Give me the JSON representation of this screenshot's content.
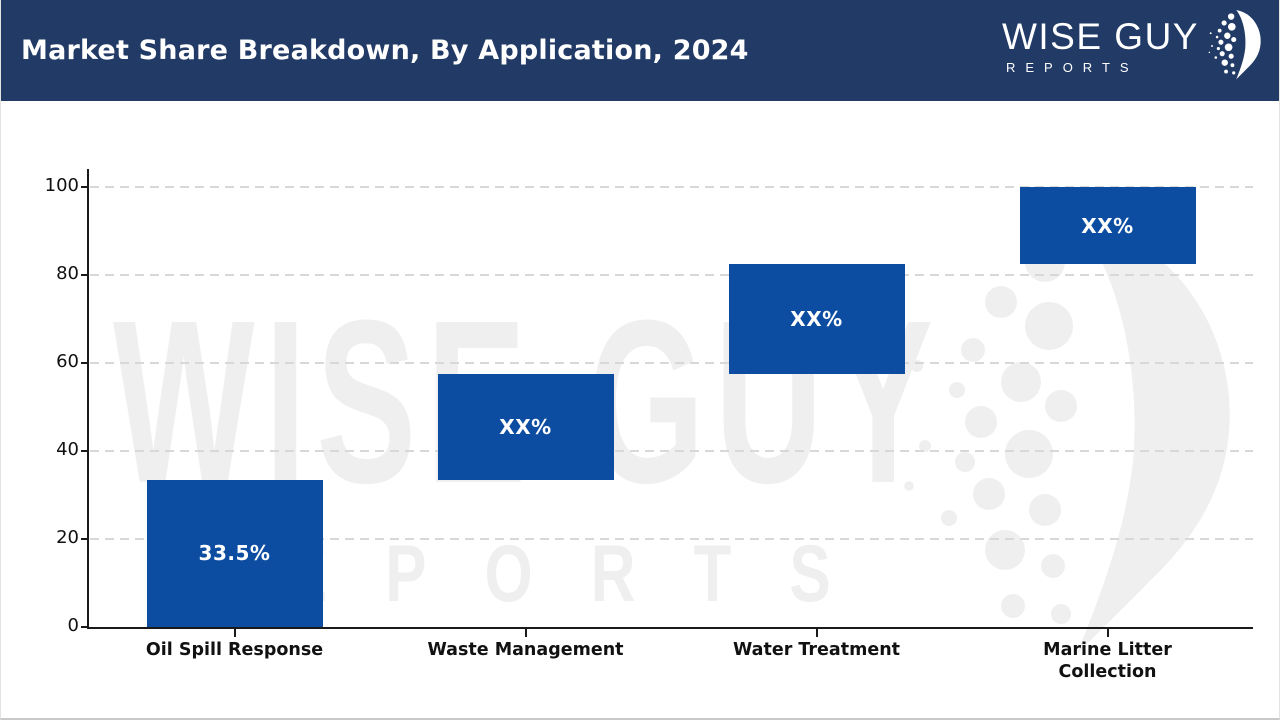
{
  "header": {
    "title": "Market Share Breakdown, By Application, 2024",
    "background_color": "#213a66",
    "logo": {
      "line1": "WISE GUY",
      "line2": "REPORTS"
    }
  },
  "watermark": {
    "line1": "WISE GUY",
    "line2": "REPORTS"
  },
  "chart_data": {
    "type": "bar",
    "variant": "floating-waterfall",
    "title": "Market Share Breakdown, By Application, 2024",
    "categories": [
      "Oil Spill Response",
      "Waste Management",
      "Water Treatment",
      "Marine Litter Collection"
    ],
    "category_lines": [
      [
        "Oil Spill Response"
      ],
      [
        "Waste Management"
      ],
      [
        "Water Treatment"
      ],
      [
        "Marine Litter",
        "Collection"
      ]
    ],
    "segments": [
      {
        "category": "Oil Spill Response",
        "start": 0,
        "end": 33.5,
        "label": "33.5%"
      },
      {
        "category": "Waste Management",
        "start": 33.5,
        "end": 57.5,
        "label": "XX%"
      },
      {
        "category": "Water Treatment",
        "start": 57.5,
        "end": 82.5,
        "label": "XX%"
      },
      {
        "category": "Marine Litter Collection",
        "start": 82.5,
        "end": 100,
        "label": "XX%"
      }
    ],
    "xlabel": "",
    "ylabel": "",
    "y_ticks": [
      0,
      20,
      40,
      60,
      80,
      100
    ],
    "ylim": [
      0,
      104
    ],
    "grid": {
      "axis": "y",
      "style": "dashed"
    },
    "bar_color": "#0c4da2",
    "bar_label_color": "#ffffff"
  }
}
